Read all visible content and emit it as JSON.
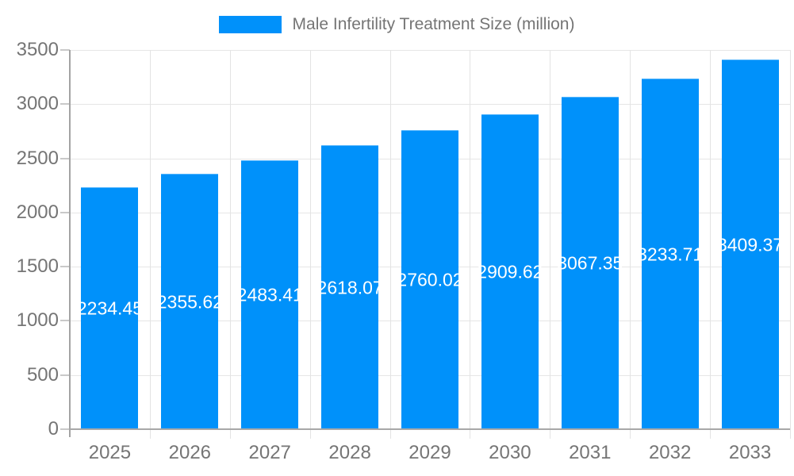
{
  "chart_data": {
    "type": "bar",
    "title": "Male Infertility Treatment Size (million)",
    "legend_entries": [
      "Male Infertility Treatment Size (million)"
    ],
    "legend_position": "top",
    "categories": [
      "2025",
      "2026",
      "2027",
      "2028",
      "2029",
      "2030",
      "2031",
      "2032",
      "2033"
    ],
    "series": [
      {
        "name": "Male Infertility Treatment Size (million)",
        "values": [
          2234.45,
          2355.62,
          2483.41,
          2618.07,
          2760.02,
          2909.62,
          3067.35,
          3233.71,
          3409.37
        ]
      }
    ],
    "value_labels": [
      "2234.45",
      "2355.62",
      "2483.41",
      "2618.07",
      "2760.02",
      "2909.62",
      "3067.35",
      "3233.71",
      "3409.37"
    ],
    "xlabel": "",
    "ylabel": "",
    "ylim": [
      0,
      3500
    ],
    "yticks": [
      0,
      500,
      1000,
      1500,
      2000,
      2500,
      3000,
      3500
    ],
    "ytick_labels": [
      "0",
      "500",
      "1000",
      "1500",
      "2000",
      "2500",
      "3000",
      "3500"
    ],
    "grid": true,
    "background": "#ffffff",
    "colors": {
      "bar": "#0091fa",
      "value_label": "#ffffff",
      "axis_text": "#757575",
      "gridline": "#e6e6e6",
      "axis_line": "#a8a8a8"
    }
  }
}
